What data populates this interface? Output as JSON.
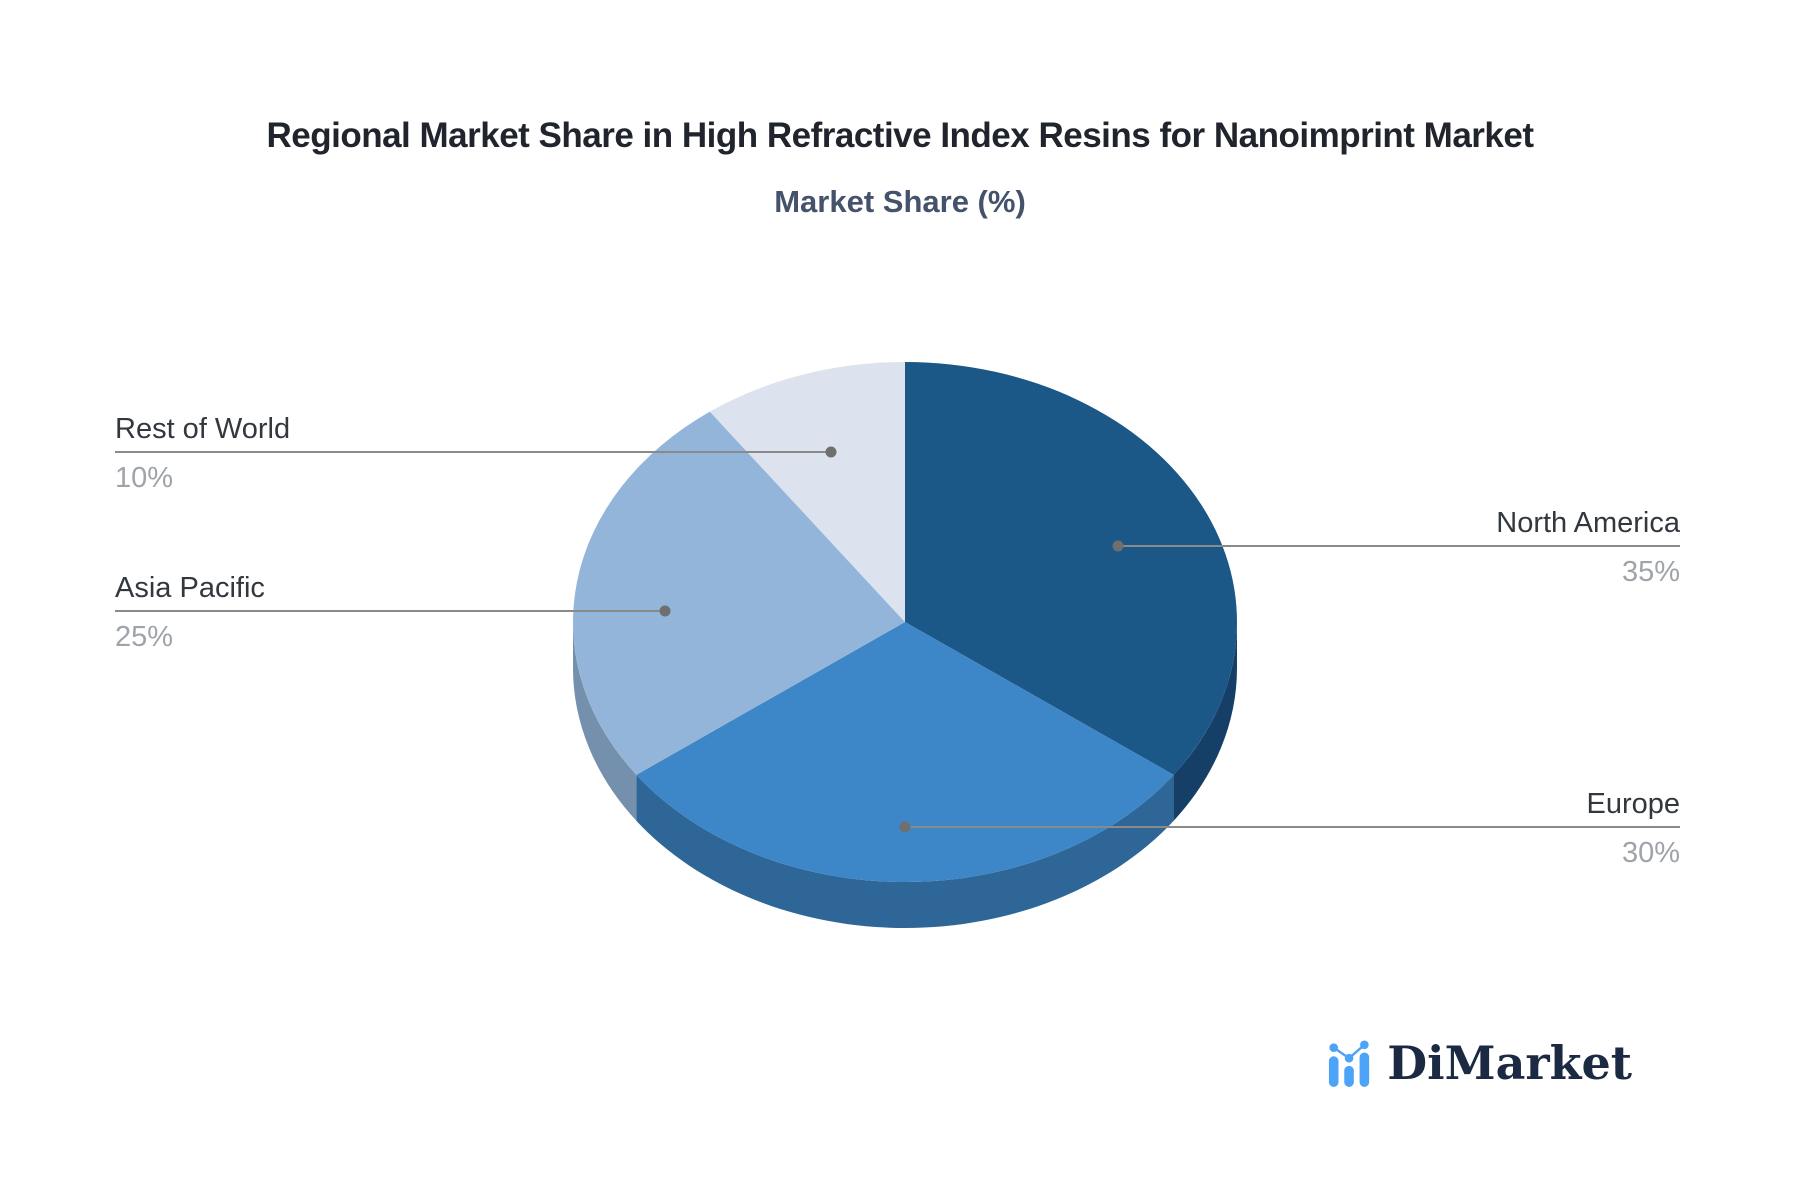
{
  "header": {
    "title": "Regional Market Share in High Refractive Index Resins for Nanoimprint Market",
    "subtitle": "Market Share (%)",
    "title_color": "#20242c",
    "subtitle_color": "#44536b"
  },
  "chart_data": {
    "type": "pie",
    "style": "3d",
    "title": "Regional Market Share in High Refractive Index Resins for Nanoimprint Market",
    "subtitle": "Market Share (%)",
    "unit": "%",
    "direction": "clockwise",
    "start_angle_deg": 0,
    "legend_position": "none",
    "segments": [
      {
        "label": "North America",
        "value": 35,
        "display": "35%",
        "color": "#1b5787",
        "side_color": "#153f66"
      },
      {
        "label": "Europe",
        "value": 30,
        "display": "30%",
        "color": "#3d87c9",
        "side_color": "#2e6797"
      },
      {
        "label": "Asia Pacific",
        "value": 25,
        "display": "25%",
        "color": "#92b5d9",
        "side_color": "#7490ac"
      },
      {
        "label": "Rest of World",
        "value": 10,
        "display": "10%",
        "color": "#dce3ee",
        "side_color": "#b9c4d4"
      }
    ],
    "label_color": "#33383f",
    "value_color": "#9fa4aa",
    "leader_line_color": "#8a8a8a",
    "leader_dot_color": "#6f6f6f"
  },
  "logo": {
    "text": "DiMarket",
    "icon": "bar-chart-logo-icon",
    "text_color": "#1b2a42",
    "icon_color": "#4da3f7"
  }
}
